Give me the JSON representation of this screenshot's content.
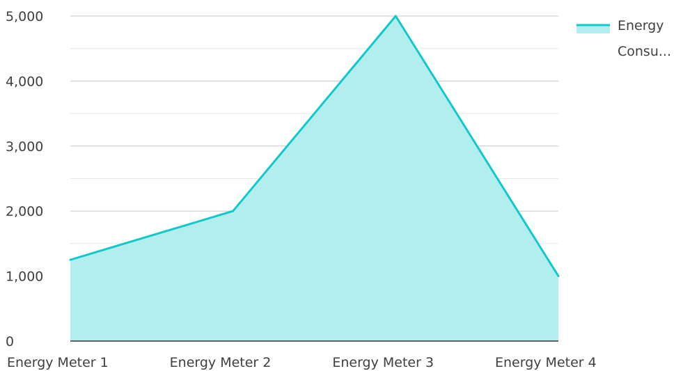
{
  "chart_data": {
    "type": "area",
    "categories": [
      "Energy Meter 1",
      "Energy Meter 2",
      "Energy Meter 3",
      "Energy Meter 4"
    ],
    "series": [
      {
        "name": "Energy Consu...",
        "values": [
          1250,
          2000,
          5000,
          1000
        ]
      }
    ],
    "ylim": [
      0,
      5000
    ],
    "yticks": [
      "0",
      "1,000",
      "2,000",
      "3,000",
      "4,000",
      "5,000"
    ],
    "ytick_values": [
      0,
      1000,
      2000,
      3000,
      4000,
      5000
    ],
    "minor_grid_values": [
      500,
      1500,
      2500,
      3500,
      4500
    ],
    "grid": true,
    "legend": {
      "position": "top-right",
      "lines": [
        "Energy",
        "Consu..."
      ]
    },
    "colors": {
      "line": "#13c8c8",
      "fill": "#b2eeee",
      "grid_major": "#c8c8c8",
      "grid_minor": "#e6e6e6",
      "axis": "#333333",
      "text": "#404040"
    }
  }
}
